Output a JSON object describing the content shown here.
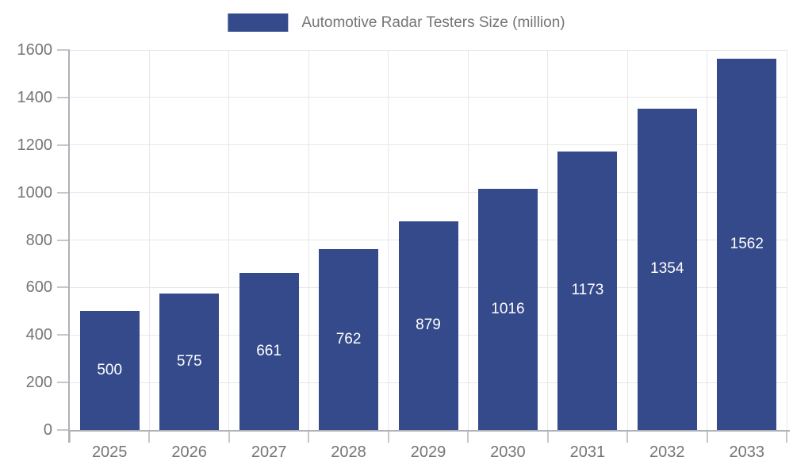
{
  "chart_data": {
    "type": "bar",
    "title": "Automotive Radar Testers Size (million)",
    "categories": [
      "2025",
      "2026",
      "2027",
      "2028",
      "2029",
      "2030",
      "2031",
      "2032",
      "2033"
    ],
    "values": [
      500,
      575,
      661,
      762,
      879,
      1016,
      1173,
      1354,
      1562
    ],
    "series": [
      {
        "name": "Automotive Radar Testers Size (million)",
        "values": [
          500,
          575,
          661,
          762,
          879,
          1016,
          1173,
          1354,
          1562
        ]
      }
    ],
    "xlabel": "",
    "ylabel": "",
    "ylim": [
      0,
      1600
    ],
    "yticks": [
      0,
      200,
      400,
      600,
      800,
      1000,
      1200,
      1400,
      1600
    ],
    "grid": true,
    "legend_position": "top",
    "value_labels_inside_bars": true,
    "colors": {
      "bar": "#354A8A",
      "bar_value_label": "#ffffff",
      "axis_text": "#757575",
      "gridline": "#e7e7e7",
      "axis_line": "#aeb1b7",
      "tick": "#c4c7cc",
      "background": "#ffffff"
    }
  }
}
